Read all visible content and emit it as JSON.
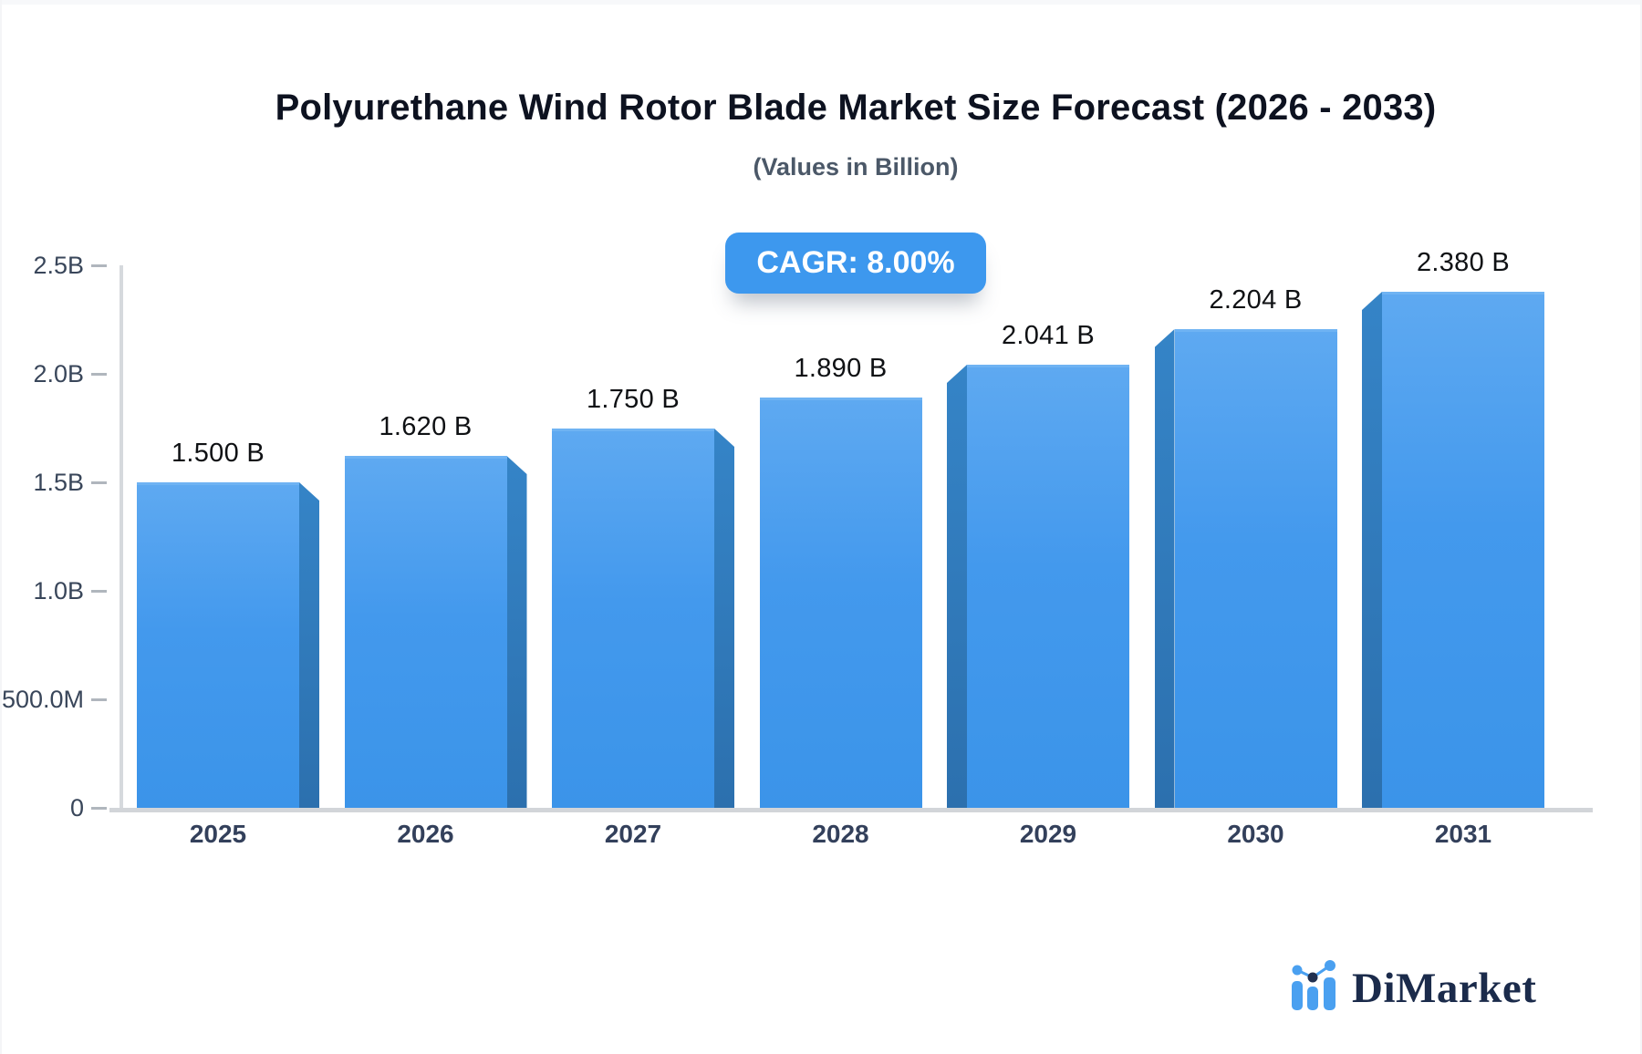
{
  "header": {
    "title": "Polyurethane Wind Rotor Blade Market Size Forecast (2026 - 2033)",
    "subtitle": "(Values in Billion)"
  },
  "badge": {
    "label": "CAGR: 8.00%"
  },
  "chart_data": {
    "type": "bar",
    "title": "Polyurethane Wind Rotor Blade Market Size Forecast (2026 - 2033)",
    "subtitle": "(Values in Billion)",
    "cagr_percent": "8.00%",
    "unit": "Billion USD",
    "categories": [
      "2025",
      "2026",
      "2027",
      "2028",
      "2029",
      "2030",
      "2031"
    ],
    "values": [
      1.5,
      1.62,
      1.75,
      1.89,
      2.041,
      2.204,
      2.38
    ],
    "value_labels": [
      "1.500 B",
      "1.620 B",
      "1.750 B",
      "1.890 B",
      "2.041 B",
      "2.204 B",
      "2.380 B"
    ],
    "ylim": [
      0,
      2.5
    ],
    "y_tick_labels_top_to_bottom": [
      "2.5B",
      "2.0B",
      "1.5B",
      "1.0B",
      "500.0M",
      "0"
    ],
    "grid": "off",
    "legend": "none",
    "bar_face_color": "#4399ed",
    "bar_side_color": "#2e76b7",
    "badge_color": "#3d98ee",
    "style": "pseudo-3d bars, side faces toward center vanishing point"
  },
  "logo": {
    "text": "DiMarket",
    "icon": "bar-chart-logo-icon",
    "icon_bar_color": "#4aa0f0",
    "icon_dot_dark_color": "#22304f",
    "text_color": "#1b2b4b"
  }
}
